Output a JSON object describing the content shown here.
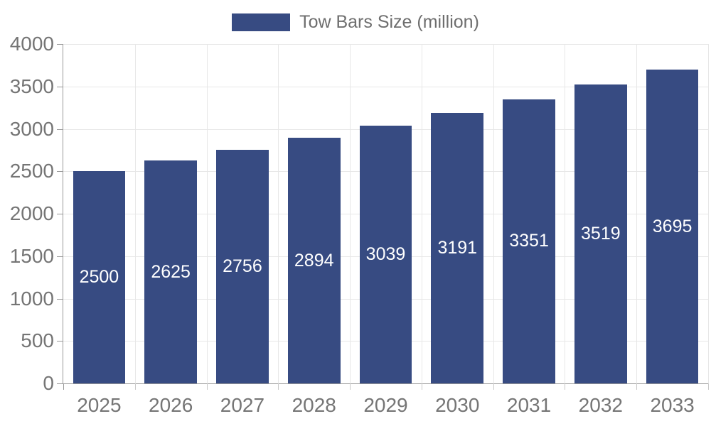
{
  "legend": {
    "label": "Tow Bars Size (million)"
  },
  "colors": {
    "background": "#ffffff",
    "bar": "#374b82",
    "axis_line": "#999999",
    "grid_line": "#e7e7e7",
    "y_tick": "#999999",
    "x_tick": "#c9c9c9",
    "axis_label": "#757575",
    "legend_text": "#6e6e6e",
    "bar_label": "#ffffff"
  },
  "chart_data": {
    "type": "bar",
    "title": "Tow Bars Size (million)",
    "categories": [
      "2025",
      "2026",
      "2027",
      "2028",
      "2029",
      "2030",
      "2031",
      "2032",
      "2033"
    ],
    "series": [
      {
        "name": "Tow Bars Size (million)",
        "values": [
          2500,
          2625,
          2756,
          2894,
          3039,
          3191,
          3351,
          3519,
          3695
        ]
      }
    ],
    "xlabel": "",
    "ylabel": "",
    "ylim": [
      0,
      4000
    ],
    "yticks": [
      0,
      500,
      1000,
      1500,
      2000,
      2500,
      3000,
      3500,
      4000
    ],
    "grid": true,
    "legend_position": "top-center",
    "value_labels": "inside-center"
  }
}
